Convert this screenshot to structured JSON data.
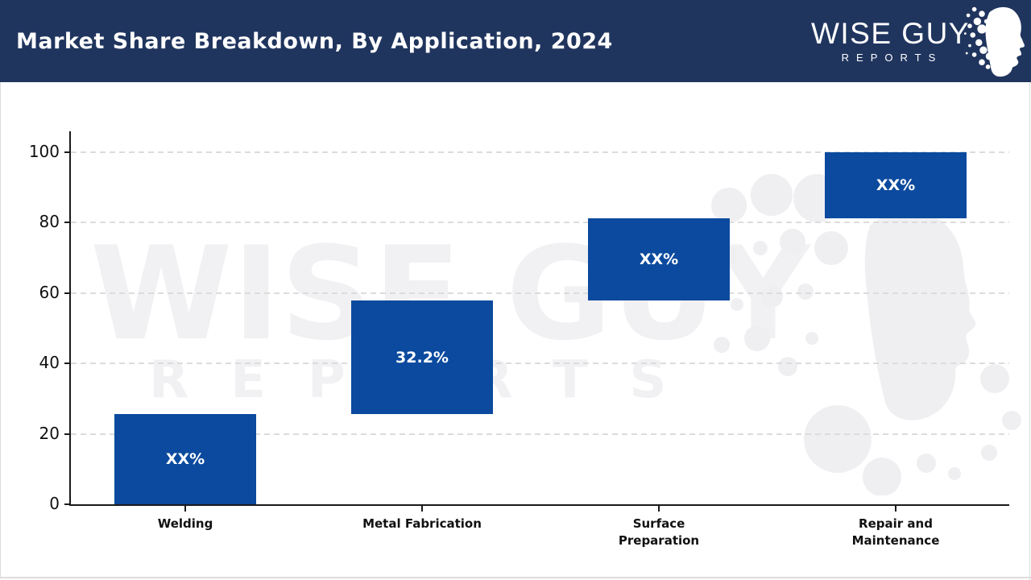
{
  "header": {
    "title": "Market Share Breakdown, By Application, 2024",
    "logo": {
      "name": "WISE GUY",
      "tagline": "REPORTS"
    }
  },
  "watermark": {
    "line1": "WISE GUY",
    "line2": "REPORTS"
  },
  "chart_data": {
    "type": "waterfall",
    "title": "Market Share Breakdown, By Application, 2024",
    "xlabel": "",
    "ylabel": "",
    "ylim": [
      0,
      106
    ],
    "y_ticks": [
      0,
      20,
      40,
      60,
      80,
      100
    ],
    "grid": "horizontal-dashed",
    "legend": "none",
    "bar_color": "#0b4a9e",
    "bar_label_color": "#ffffff",
    "categories": [
      "Welding",
      "Metal Fabrication",
      "Surface Preparation",
      "Repair and Maintenance"
    ],
    "category_lines": [
      [
        "Welding"
      ],
      [
        "Metal Fabrication"
      ],
      [
        "Surface",
        "Preparation"
      ],
      [
        "Repair and",
        "Maintenance"
      ]
    ],
    "segments": [
      {
        "category": "Welding",
        "label": "XX%",
        "start": 0,
        "end": 25.6
      },
      {
        "category": "Metal Fabrication",
        "label": "32.2%",
        "value": 32.2,
        "start": 25.6,
        "end": 57.8
      },
      {
        "category": "Surface Preparation",
        "label": "XX%",
        "start": 57.8,
        "end": 81.3
      },
      {
        "category": "Repair and Maintenance",
        "label": "XX%",
        "start": 81.3,
        "end": 100
      }
    ]
  }
}
